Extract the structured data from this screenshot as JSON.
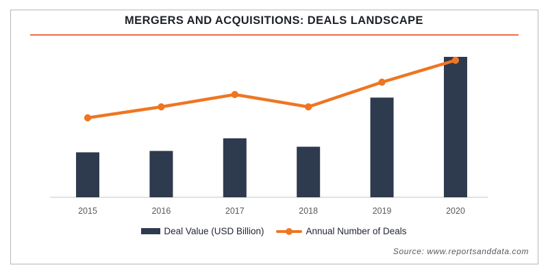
{
  "header": {
    "title": "MERGERS AND ACQUISITIONS: DEALS LANDSCAPE"
  },
  "legend": {
    "bar_label": "Deal Value (USD Billion)",
    "line_label": "Annual Number of Deals"
  },
  "source": {
    "text": "Source: www.reportsanddata.com"
  },
  "colors": {
    "bar": "#2e3a4e",
    "line": "#ee7623",
    "divider": "#ed6e3e",
    "axis": "#d9d9d9",
    "tick_label": "#595959",
    "frame_border": "#b6b6b6",
    "title_text": "#1d2127"
  },
  "chart_data": {
    "type": "bar",
    "combo": "bar + line",
    "title": "MERGERS AND ACQUISITIONS: DEALS LANDSCAPE",
    "categories": [
      "2015",
      "2016",
      "2017",
      "2018",
      "2019",
      "2020"
    ],
    "series": [
      {
        "name": "Deal Value (USD Billion)",
        "type": "bar",
        "values": [
          32,
          33,
          42,
          36,
          71,
          100
        ]
      },
      {
        "name": "Annual Number of Deals",
        "type": "line",
        "values": [
          58,
          66,
          75,
          66,
          84,
          100
        ]
      }
    ],
    "xlabel": "",
    "ylabel": "",
    "value_axis": "hidden; values are relative units (max = 100) estimated from bar/marker heights, no numeric ticks shown",
    "ylim": [
      0,
      100
    ],
    "grid": false,
    "legend_position": "bottom"
  }
}
